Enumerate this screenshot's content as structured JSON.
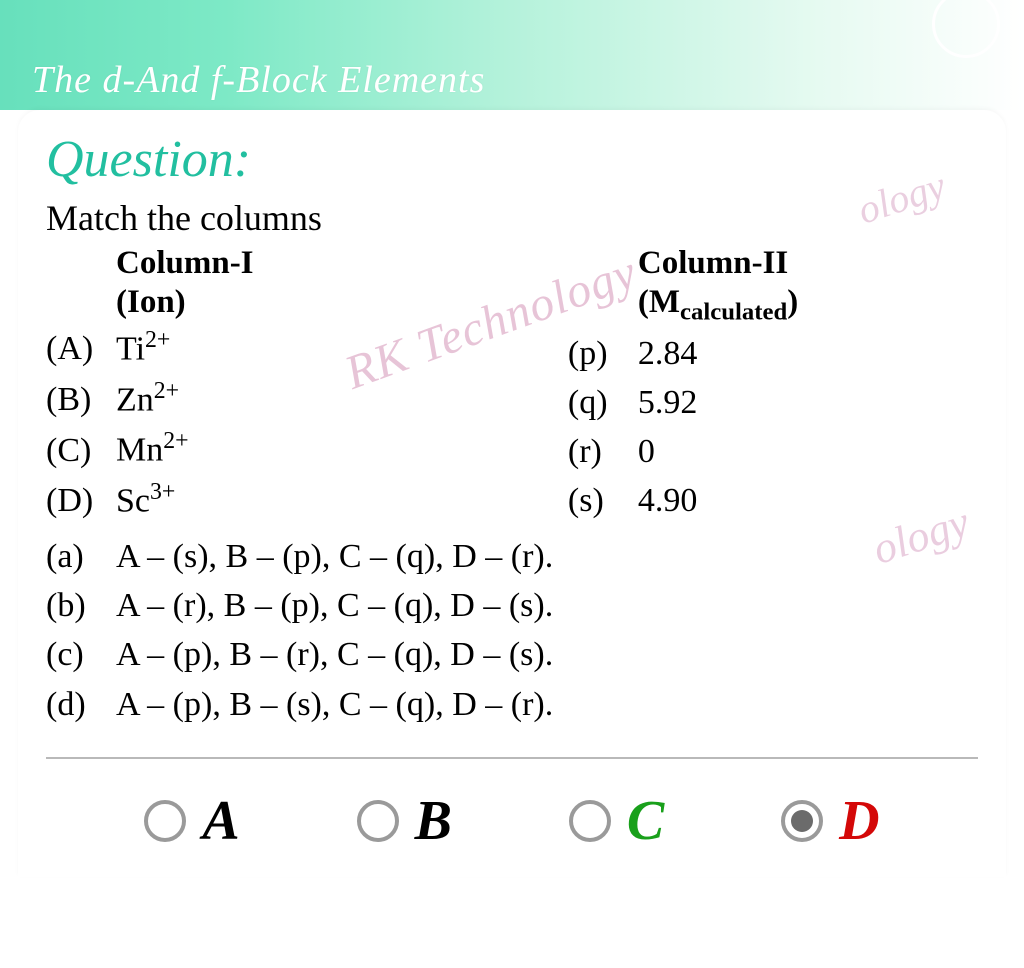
{
  "header": {
    "chapter_title": "The d-And f-Block Elements"
  },
  "card": {
    "heading": "Question:",
    "prompt": "Match the columns",
    "column1": {
      "header": "Column-I",
      "subheader": "(Ion)",
      "items": [
        {
          "tag": "(A)",
          "base": "Ti",
          "sup": "2+"
        },
        {
          "tag": "(B)",
          "base": "Zn",
          "sup": "2+"
        },
        {
          "tag": "(C)",
          "base": "Mn",
          "sup": "2+"
        },
        {
          "tag": "(D)",
          "base": "Sc",
          "sup": "3+"
        }
      ]
    },
    "column2": {
      "header": "Column-II",
      "subheader_prefix": "(M",
      "subheader_sub": "calculated",
      "subheader_suffix": ")",
      "items": [
        {
          "tag": "(p)",
          "val": "2.84"
        },
        {
          "tag": "(q)",
          "val": "5.92"
        },
        {
          "tag": "(r)",
          "val": "0"
        },
        {
          "tag": "(s)",
          "val": "4.90"
        }
      ]
    },
    "options": [
      {
        "tag": "(a)",
        "text": "A – (s), B – (p), C – (q), D – (r)."
      },
      {
        "tag": "(b)",
        "text": "A – (r), B – (p), C – (q), D – (s)."
      },
      {
        "tag": "(c)",
        "text": "A – (p), B – (r), C – (q), D – (s)."
      },
      {
        "tag": "(d)",
        "text": "A – (p), B – (s), C – (q), D – (r)."
      }
    ]
  },
  "answers": {
    "choices": [
      "A",
      "B",
      "C",
      "D"
    ],
    "selected_index": 3,
    "colors": {
      "A": "#000000",
      "B": "#000000",
      "C": "#19a01b",
      "D": "#d40808"
    }
  },
  "watermark": {
    "w1": "ology",
    "w2": "RK Technology",
    "w3": "ology"
  }
}
